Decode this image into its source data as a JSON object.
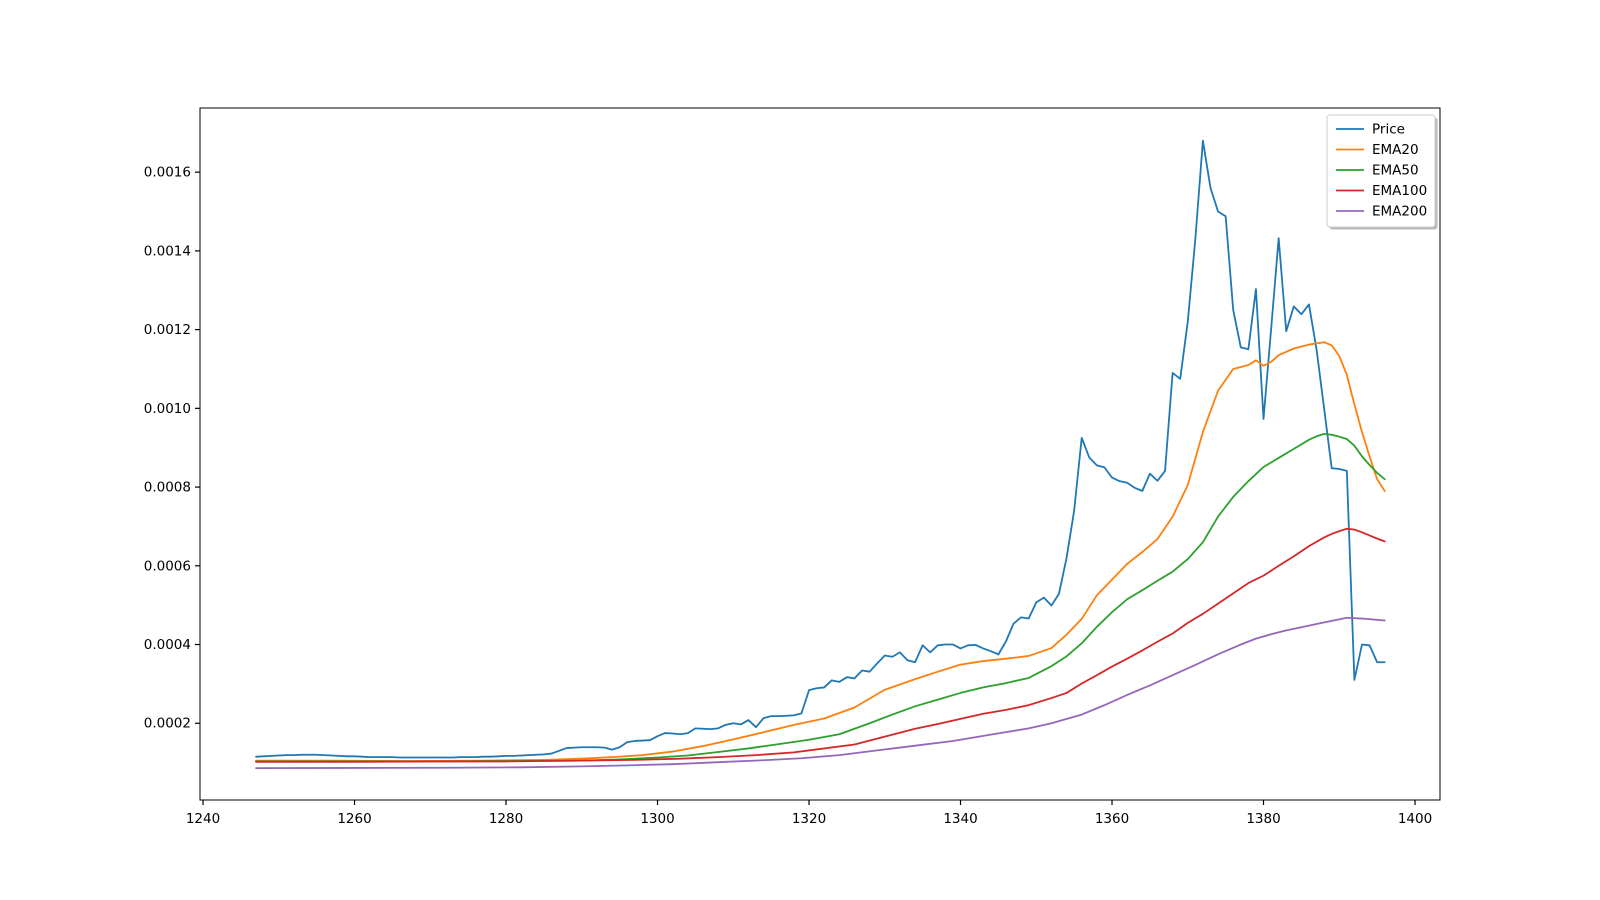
{
  "figure": {
    "background": "#ffffff",
    "plot_background": "#ffffff",
    "frame_color": "#000000"
  },
  "chart_data": {
    "type": "line",
    "title": "",
    "xlabel": "",
    "ylabel": "",
    "grid": false,
    "xlim": [
      1239.6,
      1403.3
    ],
    "ylim_microunits": [
      5,
      1763
    ],
    "xticks": [
      1240,
      1260,
      1280,
      1300,
      1320,
      1340,
      1360,
      1380,
      1400
    ],
    "xtick_labels": [
      "1240",
      "1260",
      "1280",
      "1300",
      "1320",
      "1340",
      "1360",
      "1380",
      "1400"
    ],
    "yticks_microunits": [
      200,
      400,
      600,
      800,
      1000,
      1200,
      1400,
      1600
    ],
    "ytick_labels": [
      "0.0002",
      "0.0004",
      "0.0006",
      "0.0008",
      "0.0010",
      "0.0012",
      "0.0014",
      "0.0016"
    ],
    "y_unit_scale": 1e-06,
    "legend": {
      "position": "upper-right",
      "entries": [
        "Price",
        "EMA20",
        "EMA50",
        "EMA100",
        "EMA200"
      ],
      "box_fill": "#ffffff",
      "box_edge": "#cccccc",
      "shadow_color": "#b8b8b8"
    },
    "series": [
      {
        "name": "Price",
        "color": "#1f77b4",
        "x_start": 1247,
        "x_step": 1,
        "y_microunits": [
          115,
          116,
          117,
          118,
          119,
          119,
          120,
          120,
          120,
          119,
          118,
          117,
          116,
          116,
          115,
          114,
          114,
          114,
          114,
          113,
          113,
          113,
          113,
          113,
          113,
          113,
          113,
          114,
          114,
          114,
          115,
          115,
          116,
          117,
          117,
          118,
          119,
          120,
          121,
          123,
          130,
          137,
          138,
          139,
          139,
          139,
          138,
          133,
          139,
          152,
          155,
          156,
          157,
          167,
          175,
          174,
          172,
          175,
          187,
          186,
          185,
          187,
          196,
          200,
          197,
          208,
          190,
          213,
          218,
          218,
          219,
          220,
          225,
          284,
          289,
          291,
          309,
          305,
          317,
          314,
          334,
          331,
          352,
          372,
          369,
          380,
          360,
          355,
          398,
          380,
          398,
          400,
          400,
          390,
          398,
          399,
          390,
          383,
          375,
          408,
          453,
          469,
          466,
          507,
          519,
          499,
          529,
          620,
          740,
          925,
          875,
          855,
          850,
          824,
          815,
          811,
          798,
          790,
          834,
          816,
          841,
          1090,
          1075,
          1220,
          1430,
          1680,
          1560,
          1500,
          1488,
          1250,
          1155,
          1150,
          1303,
          973,
          1200,
          1432,
          1196,
          1259,
          1239,
          1264,
          1150,
          1000,
          848,
          846,
          841,
          310,
          400,
          398,
          355,
          355
        ]
      },
      {
        "name": "EMA20",
        "color": "#ff7f0e",
        "x": [
          1247,
          1257,
          1267,
          1277,
          1285,
          1290,
          1294,
          1298,
          1302,
          1306,
          1310,
          1314,
          1318,
          1322,
          1326,
          1330,
          1334,
          1337,
          1340,
          1343,
          1346,
          1349,
          1352,
          1354,
          1356,
          1358,
          1360,
          1362,
          1364,
          1366,
          1368,
          1370,
          1372,
          1374,
          1376,
          1378,
          1379,
          1380,
          1381,
          1382,
          1384,
          1386,
          1387,
          1388,
          1389,
          1390,
          1391,
          1392,
          1393,
          1394,
          1395,
          1396
        ],
        "y_microunits": [
          105,
          105,
          104,
          105,
          107,
          110,
          114,
          119,
          128,
          142,
          159,
          177,
          196,
          212,
          240,
          285,
          312,
          331,
          349,
          358,
          364,
          371,
          391,
          425,
          465,
          525,
          565,
          605,
          635,
          668,
          725,
          805,
          940,
          1045,
          1100,
          1110,
          1122,
          1108,
          1118,
          1135,
          1152,
          1162,
          1165,
          1168,
          1160,
          1133,
          1085,
          1010,
          940,
          878,
          820,
          790
        ]
      },
      {
        "name": "EMA50",
        "color": "#2ca02c",
        "x": [
          1247,
          1260,
          1270,
          1280,
          1290,
          1295,
          1300,
          1304,
          1308,
          1312,
          1316,
          1320,
          1324,
          1328,
          1331,
          1334,
          1337,
          1340,
          1343,
          1346,
          1349,
          1352,
          1354,
          1356,
          1358,
          1360,
          1362,
          1364,
          1366,
          1368,
          1370,
          1372,
          1374,
          1376,
          1378,
          1380,
          1382,
          1384,
          1386,
          1387,
          1388,
          1389,
          1390,
          1391,
          1392,
          1393,
          1394,
          1395,
          1396
        ],
        "y_microunits": [
          103,
          103,
          103,
          104,
          105,
          108,
          113,
          118,
          127,
          136,
          147,
          158,
          172,
          200,
          222,
          243,
          260,
          277,
          291,
          302,
          315,
          345,
          370,
          403,
          445,
          482,
          515,
          538,
          562,
          585,
          617,
          660,
          725,
          775,
          815,
          851,
          874,
          897,
          920,
          929,
          935,
          933,
          928,
          922,
          905,
          878,
          856,
          836,
          820
        ]
      },
      {
        "name": "EMA100",
        "color": "#d62728",
        "x": [
          1247,
          1260,
          1270,
          1280,
          1290,
          1297,
          1303,
          1308,
          1313,
          1318,
          1322,
          1326,
          1330,
          1334,
          1337,
          1340,
          1343,
          1346,
          1349,
          1352,
          1354,
          1356,
          1358,
          1360,
          1362,
          1364,
          1366,
          1368,
          1370,
          1372,
          1374,
          1376,
          1378,
          1380,
          1382,
          1384,
          1386,
          1388,
          1389,
          1390,
          1391,
          1392,
          1393,
          1394,
          1395,
          1396
        ],
        "y_microunits": [
          102,
          102,
          103,
          103,
          105,
          107,
          110,
          114,
          119,
          126,
          136,
          146,
          166,
          186,
          198,
          211,
          224,
          234,
          246,
          264,
          277,
          301,
          322,
          344,
          364,
          385,
          407,
          428,
          455,
          478,
          504,
          530,
          556,
          575,
          600,
          624,
          650,
          672,
          681,
          688,
          694,
          692,
          685,
          677,
          669,
          662
        ]
      },
      {
        "name": "EMA200",
        "color": "#9467bd",
        "x": [
          1247,
          1260,
          1272,
          1282,
          1290,
          1296,
          1302,
          1308,
          1314,
          1319,
          1324,
          1329,
          1334,
          1339,
          1344,
          1349,
          1352,
          1356,
          1359,
          1362,
          1365,
          1368,
          1371,
          1374,
          1377,
          1379,
          1381,
          1383,
          1385,
          1387,
          1389,
          1391,
          1393,
          1396
        ],
        "y_microunits": [
          86,
          86.5,
          87,
          88,
          90.5,
          93,
          96,
          101,
          106,
          111,
          119,
          131,
          143,
          155,
          171,
          187,
          200,
          222,
          246,
          272,
          296,
          322,
          348,
          375,
          400,
          415,
          426,
          436,
          444,
          452,
          460,
          468,
          466,
          461
        ]
      }
    ]
  }
}
